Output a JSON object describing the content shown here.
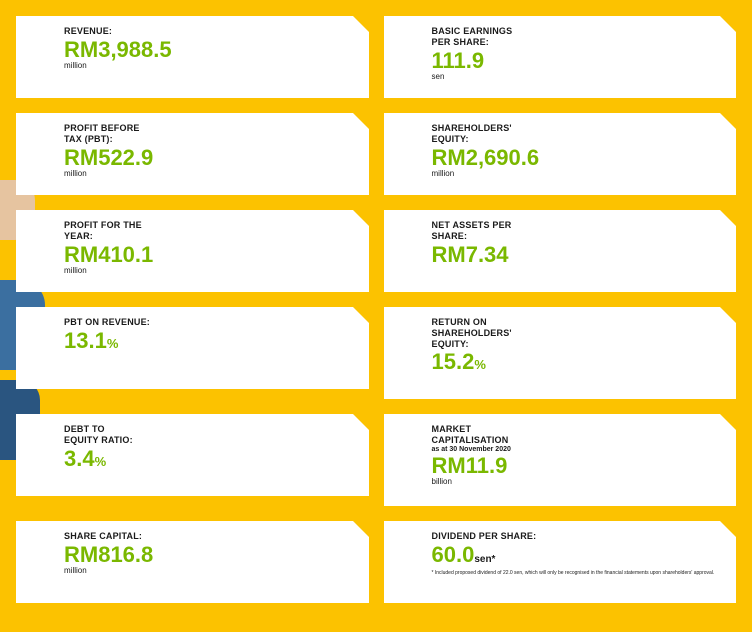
{
  "colors": {
    "background": "#fcc200",
    "card_background": "#ffffff",
    "accent": "#7ab800",
    "text": "#1a1a1a"
  },
  "cards": [
    {
      "label": "REVENUE:",
      "value": "RM3,988.5",
      "unit": "million"
    },
    {
      "label": "BASIC EARNINGS",
      "label2": "PER SHARE:",
      "value": "111.9",
      "unit": "sen"
    },
    {
      "label": "PROFIT BEFORE",
      "label2": "TAX (PBT):",
      "value": "RM522.9",
      "unit": "million"
    },
    {
      "label": "SHAREHOLDERS'",
      "label2": "EQUITY:",
      "value": "RM2,690.6",
      "unit": "million"
    },
    {
      "label": "PROFIT FOR THE",
      "label2": "YEAR:",
      "value": "RM410.1",
      "unit": "million"
    },
    {
      "label": "NET ASSETS PER",
      "label2": "SHARE:",
      "value": "RM7.34"
    },
    {
      "label": "PBT ON REVENUE:",
      "value": "13.1",
      "valueUnit": "%"
    },
    {
      "label": "RETURN ON",
      "label2": "SHAREHOLDERS'",
      "label3": "EQUITY:",
      "value": "15.2",
      "valueUnit": "%"
    },
    {
      "label": "DEBT TO",
      "label2": "EQUITY RATIO:",
      "value": "3.4",
      "valueUnit": "%"
    },
    {
      "label": "MARKET",
      "label2": "CAPITALISATION",
      "sublabel": "as at 30 November 2020",
      "value": "RM11.9",
      "unit": "billion"
    },
    {
      "label": "SHARE CAPITAL:",
      "value": "RM816.8",
      "unit": "million"
    },
    {
      "label": "DIVIDEND PER SHARE:",
      "value": "60.0",
      "blackUnit": "sen*",
      "footnote": "* Included proposed dividend of 22.0 sen, which will only be recognised in the financial statements upon shareholders' approval."
    }
  ]
}
